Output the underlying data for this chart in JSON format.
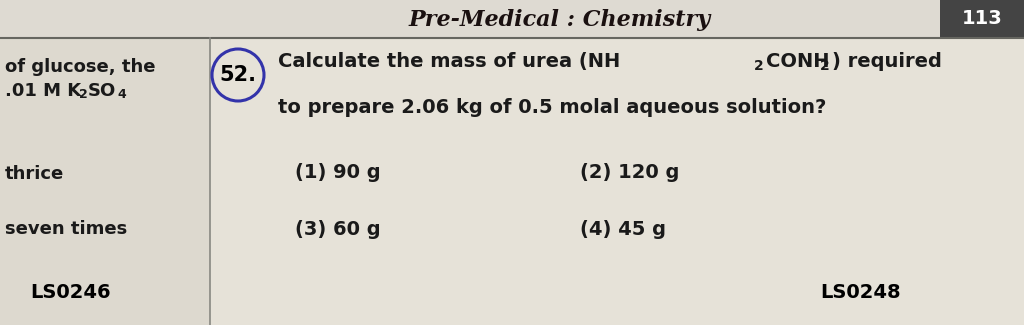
{
  "title": "Pre-Medical : Chemistry",
  "page_num": "113",
  "question_num": "52.",
  "question_line1_a": "Calculate the mass of urea (NH",
  "question_line1_b": "2",
  "question_line1_c": "CONH",
  "question_line1_d": "2",
  "question_line1_e": ") required",
  "question_line2": "to prepare 2.06 kg of 0.5 molal aqueous solution?",
  "left1": "of glucose, the",
  "left2": ".01 M K",
  "left2_sub1": "2",
  "left2_b": "SO",
  "left2_sub2": "4",
  "left3": "thrice",
  "left4": "seven times",
  "left5": "LS0246",
  "opt1": "(1) 90 g",
  "opt2": "(2) 120 g",
  "opt3": "(3) 60 g",
  "opt4": "(4) 45 g",
  "ls_right": "LS0248",
  "bg_main": "#e8e2d8",
  "bg_left": "#ddd8ce",
  "bg_header": "#d8d2c8",
  "bg_right": "#e4dfd4",
  "bg_page_num": "#444444",
  "divider_color": "#888880",
  "text_color": "#1a1a1a",
  "title_color": "#1a1010",
  "circle_color": "#3333aa",
  "bold_color": "#000000",
  "white": "#ffffff"
}
